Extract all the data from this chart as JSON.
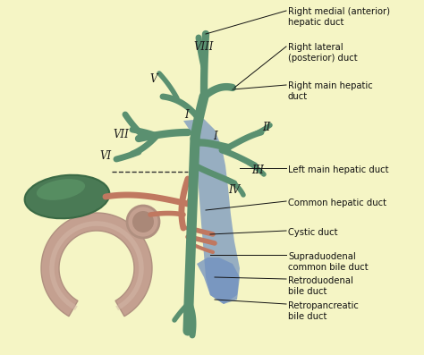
{
  "background_color": "#f5f5c5",
  "duct_green": "#5a9070",
  "duct_green_light": "#6aaa80",
  "duct_blue": "#7090c0",
  "duct_blue_dark": "#5070a0",
  "duct_red": "#c07860",
  "duct_duodenum": "#c4a090",
  "gallbladder_color": "#4a7a55",
  "labels": {
    "right_medial": "Right medial (anterior)\nhepatic duct",
    "right_lateral": "Right lateral\n(posterior) duct",
    "right_main": "Right main hepatic\nduct",
    "left_main": "Left main hepatic duct",
    "common_hepatic": "Common hepatic duct",
    "cystic": "Cystic duct",
    "supraduodenal": "Supraduodenal\ncommon bile duct",
    "retroduodenal": "Retroduodenal\nbile duct",
    "retropancreatic": "Retropancreatic\nbile duct"
  }
}
